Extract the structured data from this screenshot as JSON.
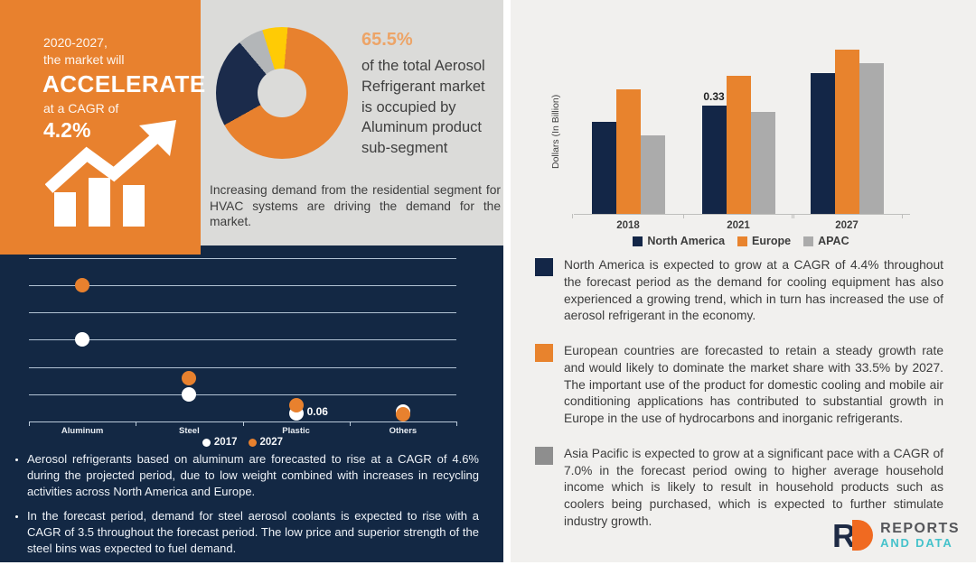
{
  "accelerate_panel": {
    "period": "2020-2027,",
    "line2": "the market will",
    "headline": "ACCELERATE",
    "line4": "at a CAGR of",
    "cagr": "4.2%"
  },
  "donut_section": {
    "highlight": "65.5%",
    "description": "of the total Aerosol Refrigerant market is occupied by Aluminum product sub-segment",
    "note": "Increasing demand from the residential segment for HVAC systems are driving the demand for the market."
  },
  "dot_panel": {
    "bullets": [
      "Aerosol refrigerants based on aluminum are forecasted to rise at a CAGR of 4.6% during the projected period, due to low weight combined with increases in recycling activities across North America and Europe.",
      "In the forecast period, demand for steel aerosol coolants is expected to rise with a CAGR of 3.5 throughout the forecast period. The low price and superior strength of the steel bins was expected to fuel demand."
    ]
  },
  "insights": [
    {
      "color": "#132647",
      "text": "North America is expected to grow at a CAGR of 4.4% throughout the forecast period as the demand for cooling equipment has also experienced a growing trend, which in turn has increased the use of aerosol refrigerant in the economy."
    },
    {
      "color": "#e8832d",
      "text": "European countries are forecasted to retain a steady growth rate and would likely to dominate the market share with 33.5% by 2027. The important use of the product for domestic cooling and mobile air conditioning applications has contributed to substantial growth in Europe in the use of hydrocarbons and inorganic refrigerants."
    },
    {
      "color": "#8e8e8e",
      "text": "Asia Pacific is expected to grow at a significant pace with a CAGR of 7.0% in the forecast period owing to higher average household income which is likely to result in household products such as coolers being purchased, which is expected to further stimulate industry growth."
    }
  ],
  "logo": {
    "mark_r": "R",
    "mark_d": "D",
    "line1": "REPORTS",
    "line2": "AND DATA"
  },
  "colors": {
    "orange": "#e8812e",
    "navy": "#132844",
    "panel_gray": "#dbdbd9",
    "right_bg": "#f1f0ee",
    "bar_gray": "#ababab",
    "donut_yellow": "#ffcb05",
    "donut_gray": "#b3b6b8",
    "logo_teal": "#45c2cb"
  },
  "chart_data": [
    {
      "id": "product-share-donut",
      "type": "pie",
      "title": "Aluminum product sub-segment share",
      "segments": [
        {
          "name": "Aluminum product sub-segment",
          "value": 65.5,
          "color": "#e8812e"
        },
        {
          "name": "",
          "value": 22.0,
          "color": "#1b2b4b"
        },
        {
          "name": "",
          "value": 6.3,
          "color": "#b3b6b8"
        },
        {
          "name": "",
          "value": 6.2,
          "color": "#ffcb05"
        }
      ],
      "start_angle_deg": 5,
      "donut_hole_ratio": 0.37
    },
    {
      "id": "material-dot-plot",
      "type": "scatter",
      "categories": [
        "Aluminum",
        "Steel",
        "Plastic",
        "Others"
      ],
      "series": [
        {
          "name": "2017",
          "color": "#ffffff",
          "values": [
            0.6,
            0.2,
            0.06,
            0.07
          ]
        },
        {
          "name": "2027",
          "color": "#e8812e",
          "values": [
            1.0,
            0.32,
            0.12,
            0.05
          ]
        }
      ],
      "ylim": [
        0,
        1.2
      ],
      "gridline_step": 0.2,
      "grid": true,
      "legend_position": "bottom",
      "annotations": [
        {
          "series": "2017",
          "category": "Plastic",
          "label": "0.06"
        }
      ]
    },
    {
      "id": "regional-bar-chart",
      "type": "bar",
      "categories": [
        "2018",
        "2021",
        "2027"
      ],
      "series": [
        {
          "name": "North America",
          "color": "#132647",
          "values": [
            0.28,
            0.33,
            0.43
          ]
        },
        {
          "name": "Europe",
          "color": "#e8832d",
          "values": [
            0.38,
            0.42,
            0.5
          ]
        },
        {
          "name": "APAC",
          "color": "#ababab",
          "values": [
            0.24,
            0.31,
            0.46
          ]
        }
      ],
      "xlabel": "",
      "ylabel": "Dollars (In Billion)",
      "ylim": [
        0,
        0.55
      ],
      "grid": false,
      "legend_position": "bottom",
      "annotations": [
        {
          "series": "North America",
          "category": "2021",
          "label": "0.33"
        }
      ]
    }
  ]
}
